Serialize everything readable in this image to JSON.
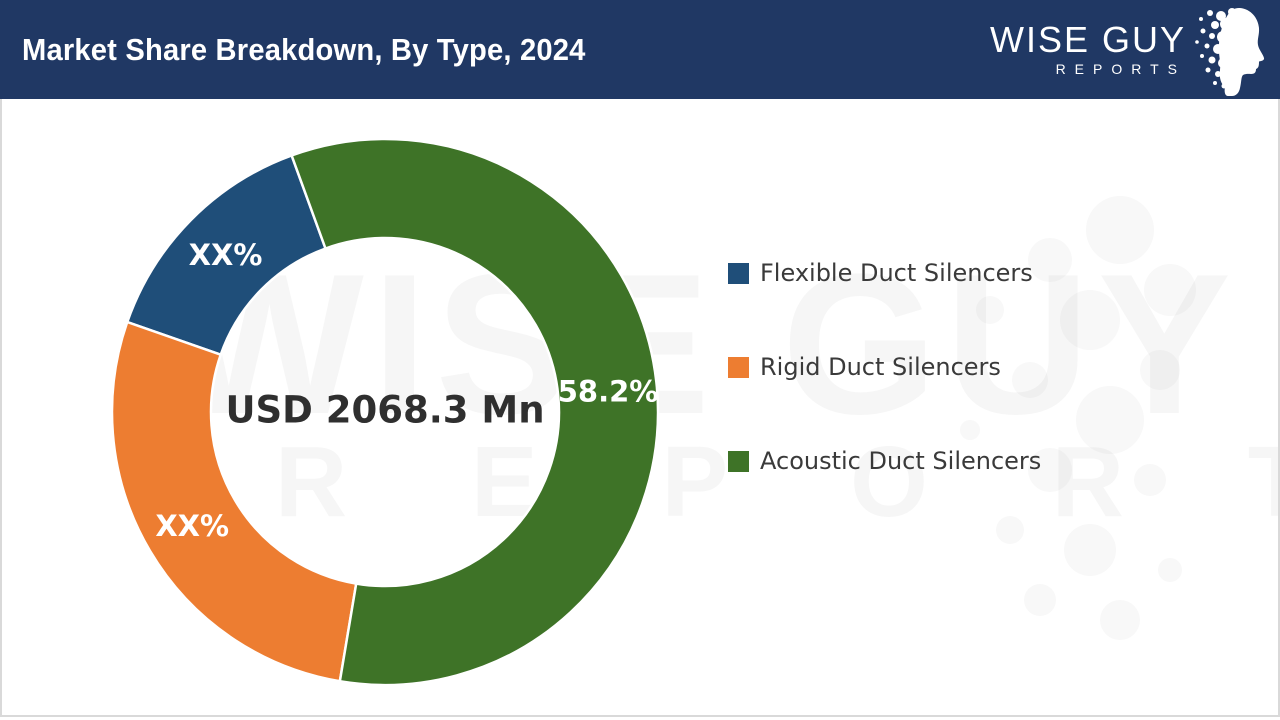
{
  "header": {
    "title": "Market Share Breakdown, By Type, 2024",
    "bg_color": "#203864",
    "logo": {
      "line1": "WISE GUY",
      "line2": "REPORTS"
    }
  },
  "watermark": {
    "line1": "WISE GUY",
    "line2": "R E P O R T S"
  },
  "chart_data": {
    "type": "donut",
    "title": "Market Share Breakdown, By Type, 2024",
    "center_label": "USD 2068.3 Mn",
    "start_angle_deg": 110,
    "direction": "ccw",
    "legend_position": "right",
    "segments": [
      {
        "name": "Flexible Duct Silencers",
        "label": "XX%",
        "value_pct": 14.1,
        "color": "#1f4e79"
      },
      {
        "name": "Rigid Duct Silencers",
        "label": "XX%",
        "value_pct": 27.7,
        "color": "#ed7d31"
      },
      {
        "name": "Acoustic Duct Silencers",
        "label": "58.2%",
        "value_pct": 58.2,
        "color": "#3e7327"
      }
    ]
  }
}
